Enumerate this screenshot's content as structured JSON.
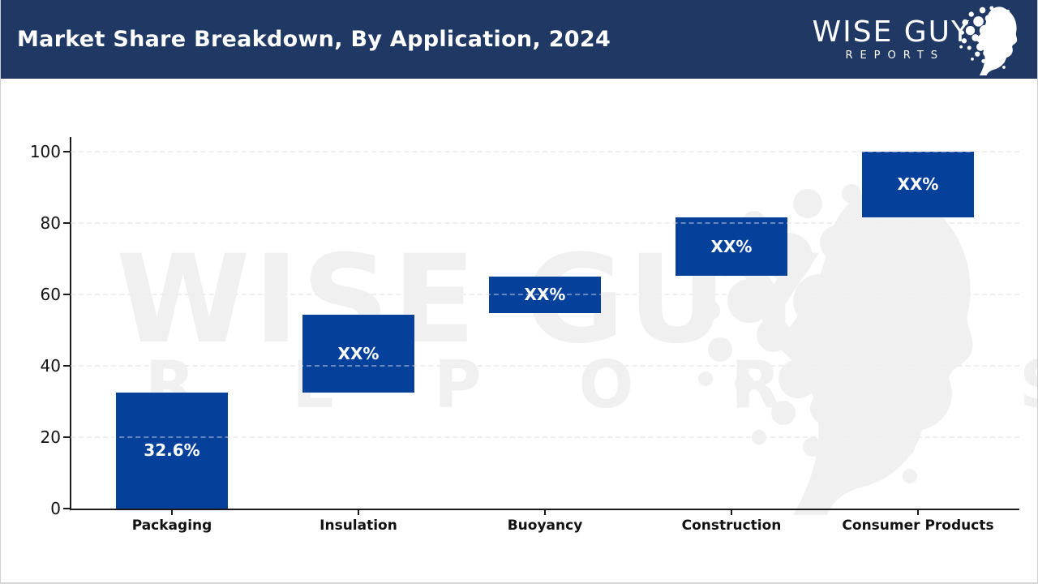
{
  "header": {
    "title": "Market Share Breakdown, By Application, 2024",
    "logo": {
      "line1": "WISE GUY",
      "line2": "REPORTS"
    }
  },
  "watermark": {
    "line1": "WISE GUY",
    "line2": "R E P O R T S"
  },
  "colors": {
    "header_bg": "#1f3864",
    "bar": "#05409a",
    "bar_label": "#ffffff",
    "axis": "#1a1a1a",
    "grid": "#e4e4e4",
    "grid_over_bar": "rgba(255,255,255,0.38)",
    "watermark": "#f0f0f0",
    "page_border": "#cfcfcf",
    "tick_label": "#111111"
  },
  "chart_data": {
    "type": "bar",
    "subtype": "waterfall",
    "title": "Market Share Breakdown, By Application, 2024",
    "categories": [
      "Packaging",
      "Insulation",
      "Buoyancy",
      "Construction",
      "Consumer Products"
    ],
    "bars": [
      {
        "category": "Packaging",
        "start": 0,
        "end": 32.6,
        "label": "32.6%"
      },
      {
        "category": "Insulation",
        "start": 32.6,
        "end": 54.4,
        "label": "XX%"
      },
      {
        "category": "Buoyancy",
        "start": 54.8,
        "end": 65.0,
        "label": "XX%"
      },
      {
        "category": "Construction",
        "start": 65.2,
        "end": 81.6,
        "label": "XX%"
      },
      {
        "category": "Consumer Products",
        "start": 81.6,
        "end": 100.0,
        "label": "XX%"
      }
    ],
    "xlabel": "",
    "ylabel": "",
    "yticks": [
      0,
      20,
      40,
      60,
      80,
      100
    ],
    "ylim": [
      0,
      104
    ],
    "grid": "horizontal-dashed",
    "legend_position": "none"
  }
}
